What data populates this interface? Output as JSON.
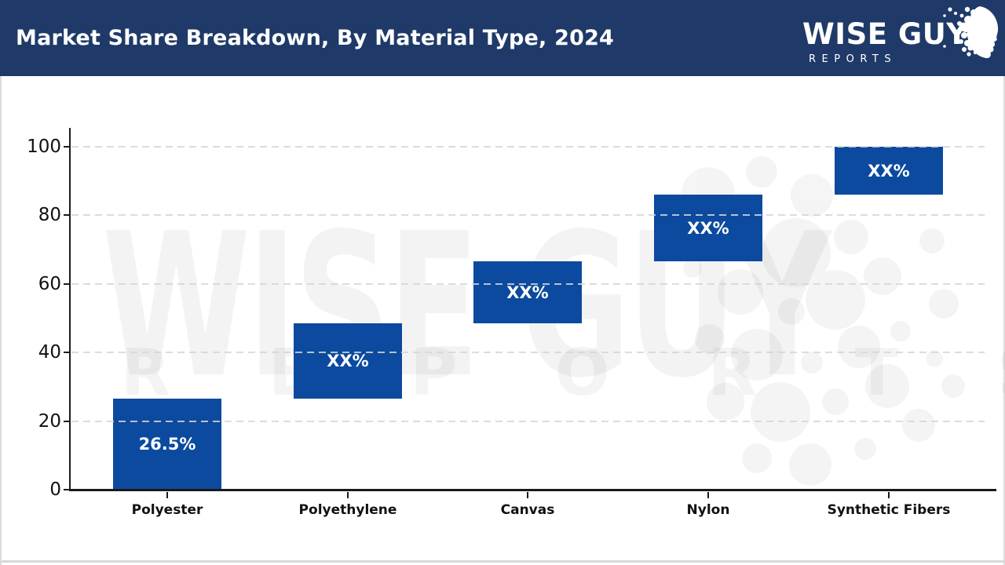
{
  "header": {
    "title": "Market Share Breakdown, By Material Type, 2024",
    "bg_color": "#1f3a68",
    "logo": {
      "line1": "WISE GUY",
      "line2": "R E P O R T S"
    }
  },
  "watermark": {
    "line1": "WISE GUY",
    "line2": "R E P O R T S"
  },
  "chart_data": {
    "type": "bar",
    "subtype": "waterfall-floating-segments",
    "title": "Market Share Breakdown, By Material Type, 2024",
    "categories": [
      "Polyester",
      "Polyethylene",
      "Canvas",
      "Nylon",
      "Synthetic Fibers"
    ],
    "segments": [
      {
        "category": "Polyester",
        "from": 0,
        "to": 26.5,
        "label": "26.5%"
      },
      {
        "category": "Polyethylene",
        "from": 26.5,
        "to": 48.5,
        "label": "XX%"
      },
      {
        "category": "Canvas",
        "from": 48.5,
        "to": 66.5,
        "label": "XX%"
      },
      {
        "category": "Nylon",
        "from": 66.5,
        "to": 86,
        "label": "XX%"
      },
      {
        "category": "Synthetic Fibers",
        "from": 86,
        "to": 100,
        "label": "XX%"
      }
    ],
    "xlabel": "",
    "ylabel": "",
    "yticks": [
      0,
      20,
      40,
      60,
      80,
      100
    ],
    "ylim": [
      0,
      105
    ],
    "grid": "horizontal-dashed",
    "legend": "none",
    "bar_color": "#0b4a9e",
    "bar_label_color": "#ffffff",
    "axis_color": "#1a1a1a",
    "grid_color": "#d9d9d9"
  }
}
